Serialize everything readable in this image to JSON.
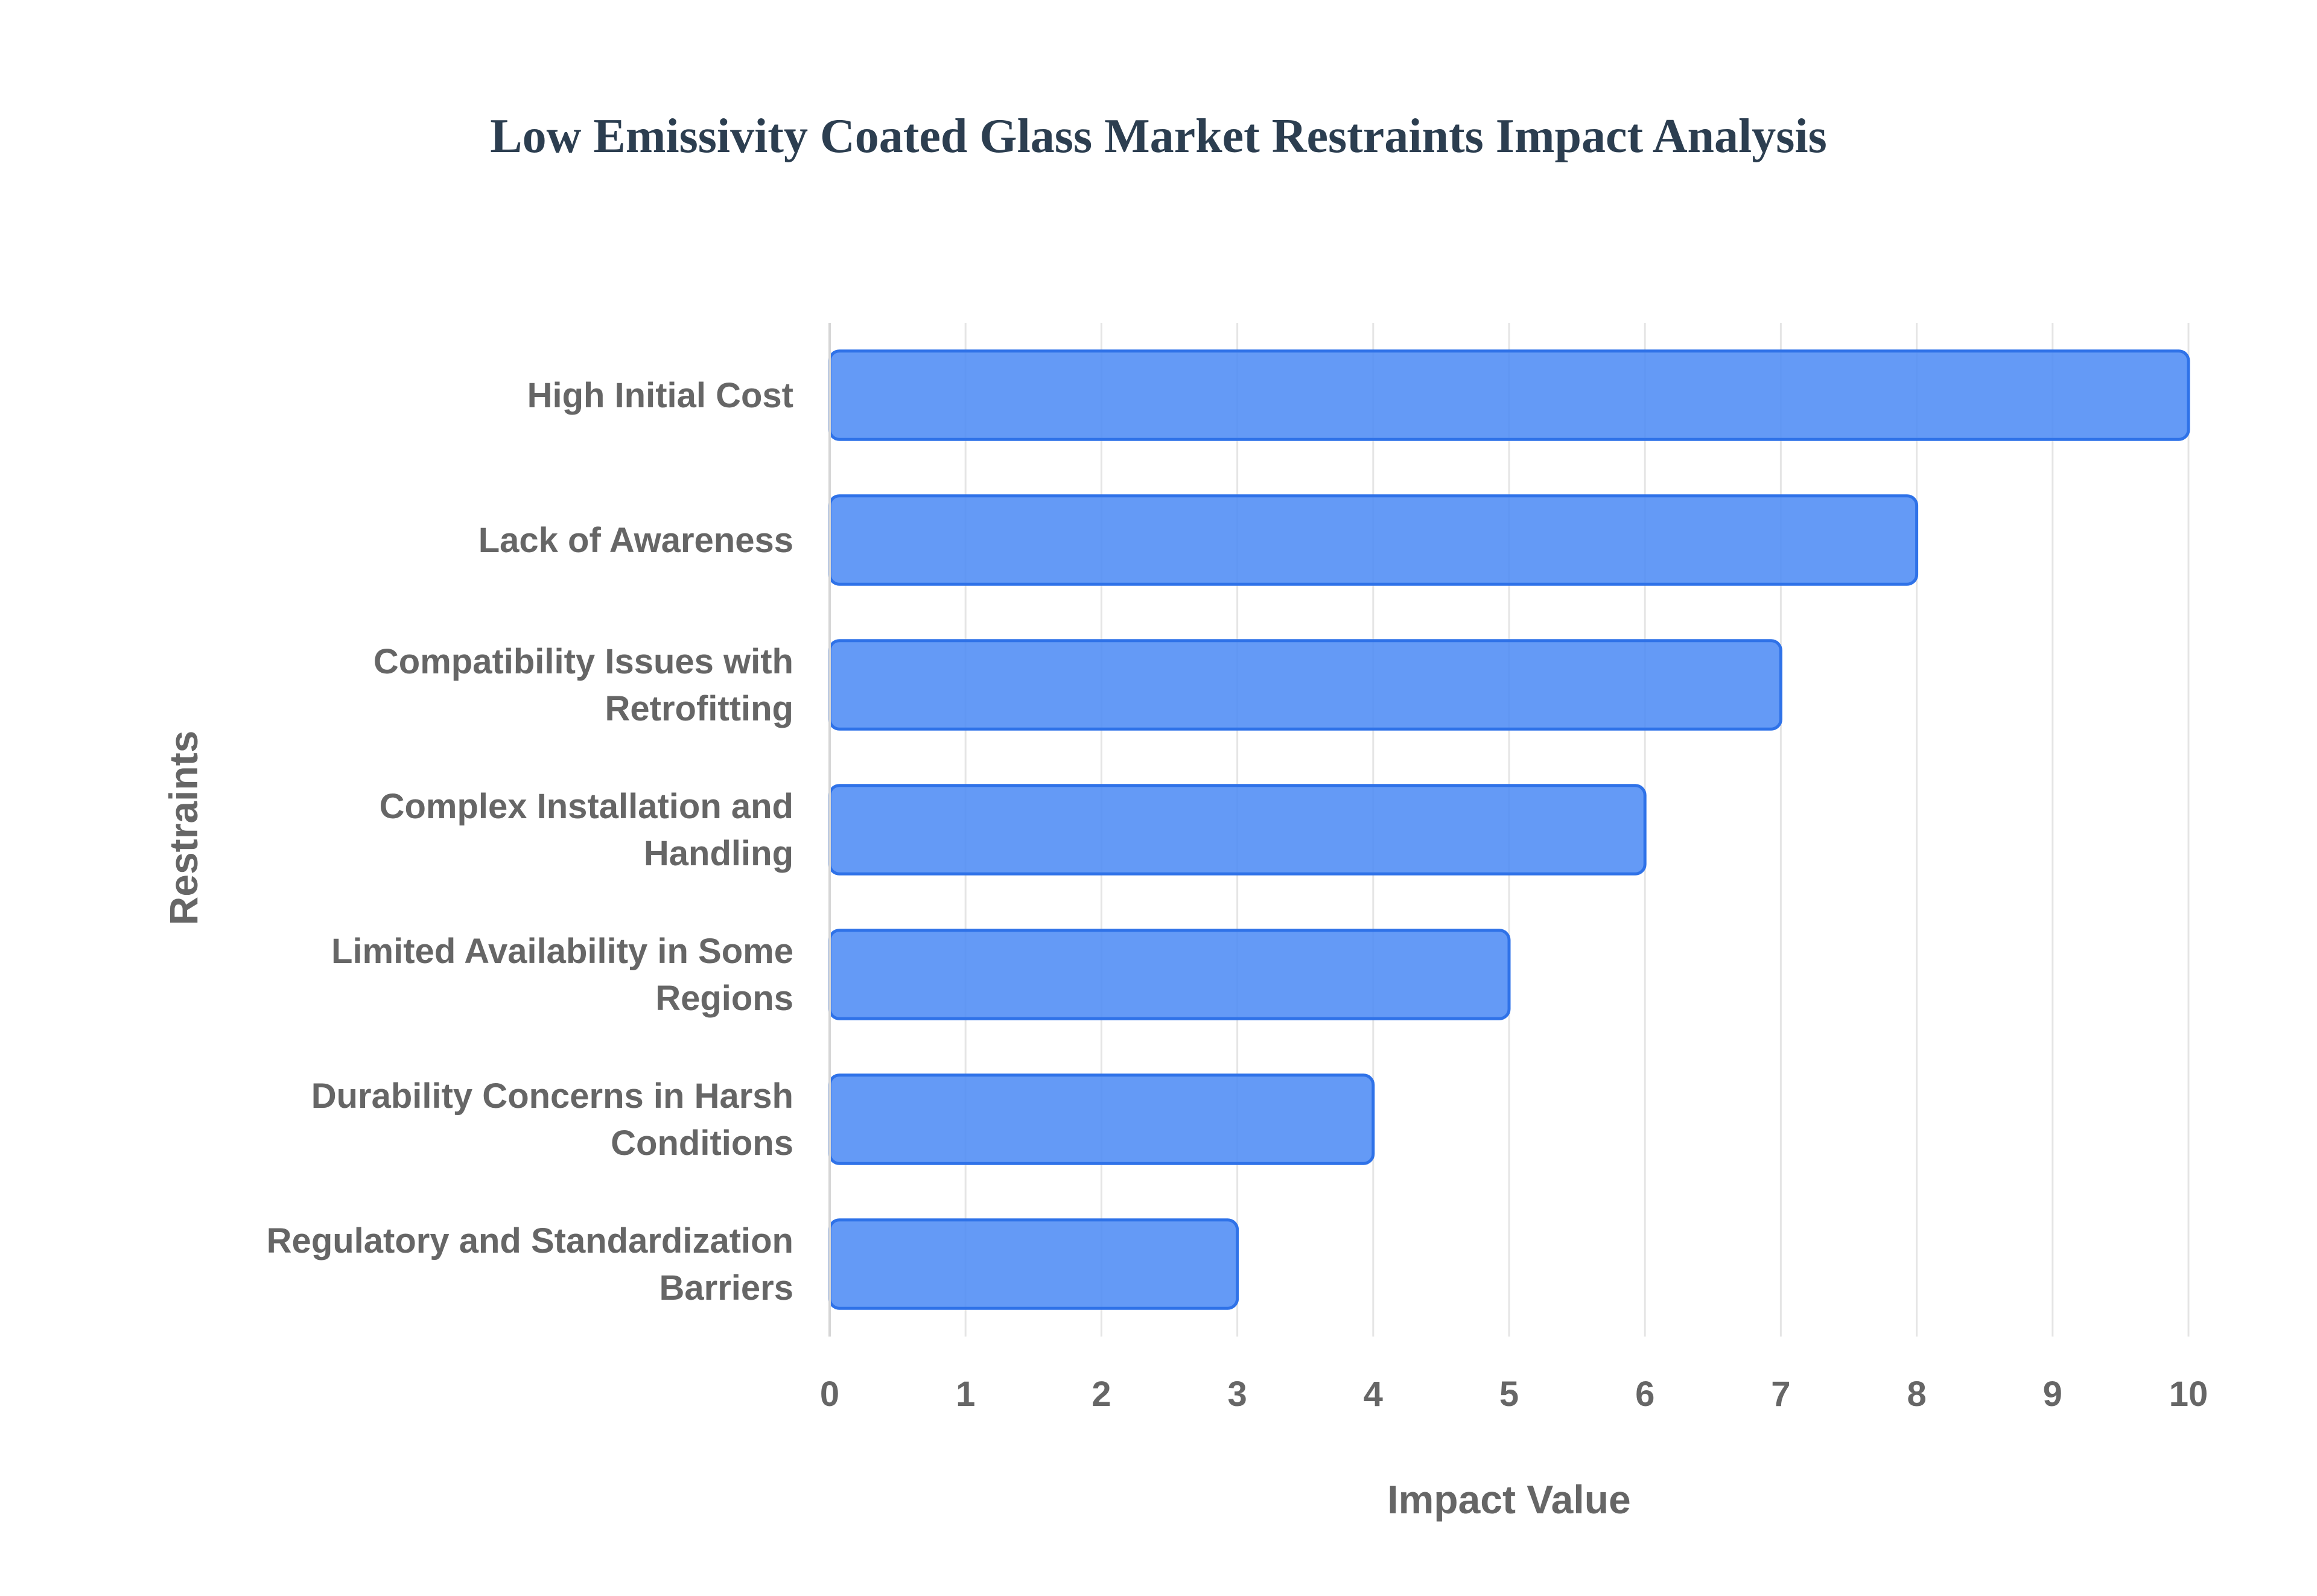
{
  "chart_data": {
    "type": "bar",
    "orientation": "horizontal",
    "title": "Low Emissivity Coated Glass Market Restraints Impact Analysis",
    "xlabel": "Impact Value",
    "ylabel": "Restraints",
    "categories": [
      [
        "High Initial Cost"
      ],
      [
        "Lack of Awareness"
      ],
      [
        "Compatibility Issues with",
        "Retrofitting"
      ],
      [
        "Complex Installation and",
        "Handling"
      ],
      [
        "Limited Availability in Some",
        "Regions"
      ],
      [
        "Durability Concerns in Harsh",
        "Conditions"
      ],
      [
        "Regulatory and Standardization",
        "Barriers"
      ]
    ],
    "values": [
      10,
      8,
      7,
      6,
      5,
      4,
      3
    ],
    "xlim": [
      0,
      10
    ],
    "xticks": [
      0,
      1,
      2,
      3,
      4,
      5,
      6,
      7,
      8,
      9,
      10
    ],
    "grid": true,
    "legend": "none",
    "colors": {
      "bar_fill": "#4f8cf5",
      "bar_stroke": "#2f72e8",
      "grid": "#e5e5e5",
      "axis": "#d6d6d6",
      "text": "#666666",
      "title": "#2c3e50"
    }
  }
}
